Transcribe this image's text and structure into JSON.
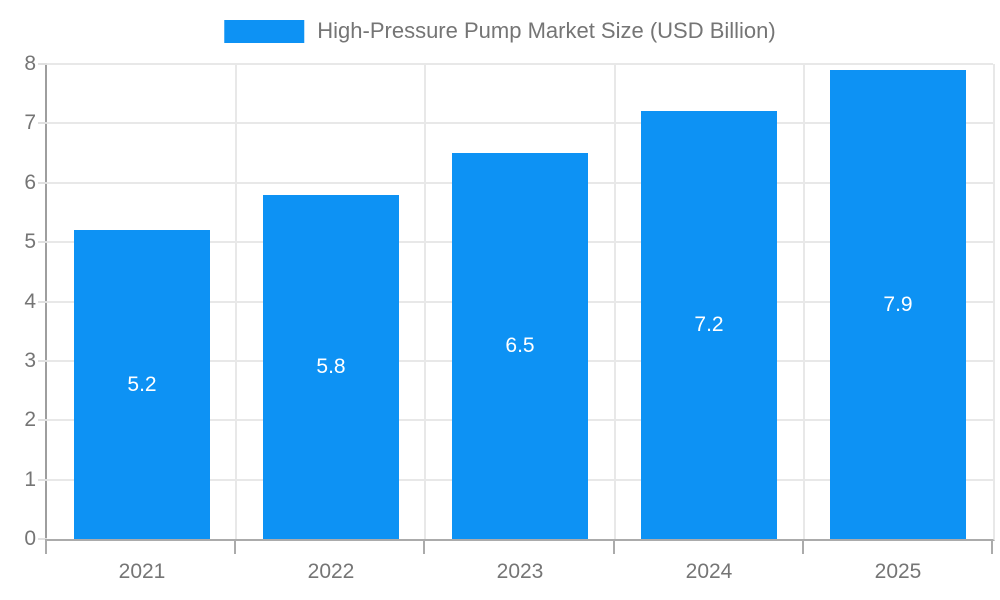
{
  "legend": {
    "items": [
      {
        "label": "High-Pressure Pump Market Size (USD Billion)",
        "color": "#0d92f4"
      }
    ],
    "position": "top-center"
  },
  "chart_data": {
    "type": "bar",
    "title": "High-Pressure Pump Market Size (USD Billion)",
    "categories": [
      "2021",
      "2022",
      "2023",
      "2024",
      "2025"
    ],
    "values": [
      5.2,
      5.8,
      6.5,
      7.2,
      7.9
    ],
    "value_labels": [
      "5.2",
      "5.8",
      "6.5",
      "7.2",
      "7.9"
    ],
    "series": [
      {
        "name": "High-Pressure Pump Market Size (USD Billion)",
        "values": [
          5.2,
          5.8,
          6.5,
          7.2,
          7.9
        ]
      }
    ],
    "xlabel": "",
    "ylabel": "",
    "ylim": [
      0,
      8
    ],
    "yticks": [
      0,
      1,
      2,
      3,
      4,
      5,
      6,
      7,
      8
    ],
    "grid": true,
    "legend_position": "top-center",
    "bar_color": "#0d92f4",
    "bar_label_color": "#ffffff",
    "axis_text_color": "#757575",
    "grid_color": "#e8e8e8",
    "background_color": "#ffffff"
  }
}
